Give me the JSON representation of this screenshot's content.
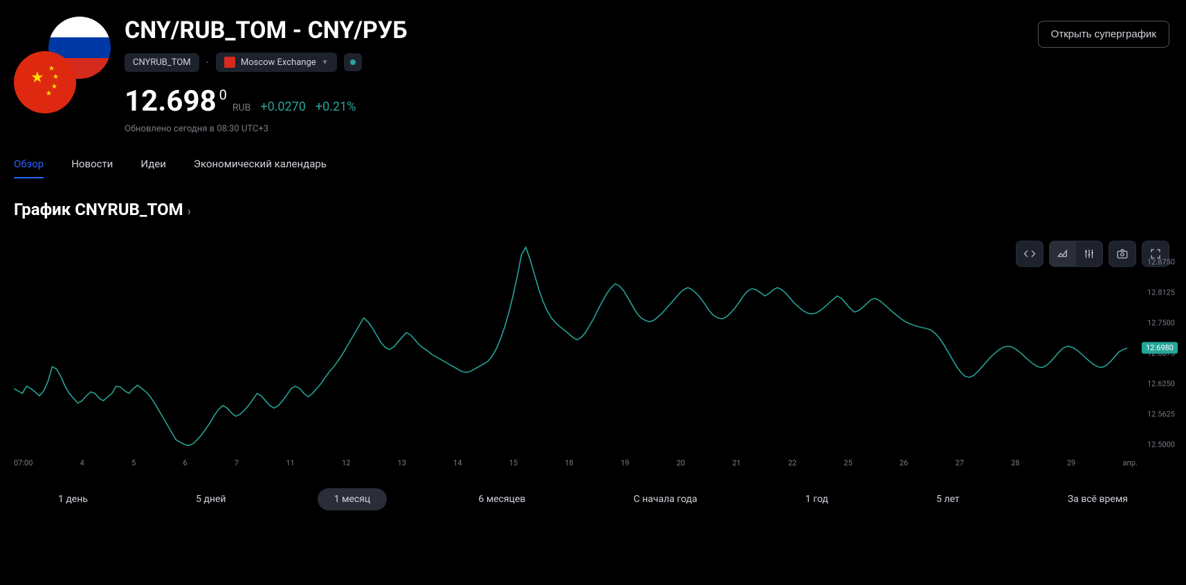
{
  "header": {
    "title": "CNY/RUB_TOM - CNY/РУБ",
    "ticker": "CNYRUB_TOM",
    "exchange": "Moscow Exchange",
    "status_color": "#26a69a",
    "open_superchart": "Открыть суперграфик"
  },
  "price": {
    "main": "12.698",
    "sup": "0",
    "unit": "RUB",
    "change_abs": "+0.0270",
    "change_pct": "+0.21%",
    "change_color": "#26a69a",
    "updated": "Обновлено сегодня в 08:30 UTC+3"
  },
  "tabs": [
    {
      "label": "Обзор",
      "active": true
    },
    {
      "label": "Новости",
      "active": false
    },
    {
      "label": "Идеи",
      "active": false
    },
    {
      "label": "Экономический календарь",
      "active": false
    }
  ],
  "chart_header": {
    "title": "График CNYRUB_TOM"
  },
  "chart": {
    "type": "line",
    "line_color": "#26a69a",
    "line_width": 1.5,
    "background_color": "#000000",
    "ylim": [
      12.48,
      12.92
    ],
    "y_ticks": [
      12.5,
      12.5625,
      12.625,
      12.6875,
      12.75,
      12.8125,
      12.875
    ],
    "y_tick_labels": [
      "12.5000",
      "12.5625",
      "12.6250",
      "12.6875",
      "12.7500",
      "12.8125",
      "12.8750"
    ],
    "current_value": 12.698,
    "current_label": "12.6980",
    "x_labels": [
      "07:00",
      "4",
      "5",
      "6",
      "7",
      "11",
      "12",
      "13",
      "14",
      "15",
      "18",
      "19",
      "20",
      "21",
      "22",
      "25",
      "26",
      "27",
      "28",
      "29",
      "апр."
    ],
    "series": [
      12.615,
      12.61,
      12.605,
      12.62,
      12.615,
      12.608,
      12.6,
      12.61,
      12.63,
      12.66,
      12.655,
      12.64,
      12.62,
      12.605,
      12.595,
      12.585,
      12.59,
      12.6,
      12.608,
      12.605,
      12.595,
      12.59,
      12.598,
      12.605,
      12.62,
      12.618,
      12.61,
      12.605,
      12.615,
      12.622,
      12.615,
      12.608,
      12.598,
      12.585,
      12.57,
      12.555,
      12.54,
      12.525,
      12.51,
      12.505,
      12.5,
      12.498,
      12.502,
      12.51,
      12.52,
      12.532,
      12.545,
      12.56,
      12.572,
      12.58,
      12.575,
      12.565,
      12.558,
      12.562,
      12.57,
      12.58,
      12.592,
      12.605,
      12.6,
      12.59,
      12.58,
      12.575,
      12.58,
      12.59,
      12.602,
      12.615,
      12.62,
      12.615,
      12.605,
      12.598,
      12.605,
      12.615,
      12.625,
      12.638,
      12.65,
      12.66,
      12.672,
      12.685,
      12.7,
      12.715,
      12.73,
      12.745,
      12.76,
      12.752,
      12.74,
      12.725,
      12.71,
      12.7,
      12.695,
      12.7,
      12.71,
      12.72,
      12.73,
      12.725,
      12.715,
      12.705,
      12.698,
      12.692,
      12.685,
      12.68,
      12.675,
      12.67,
      12.665,
      12.66,
      12.655,
      12.65,
      12.648,
      12.65,
      12.655,
      12.66,
      12.665,
      12.67,
      12.68,
      12.695,
      12.715,
      12.74,
      12.77,
      12.805,
      12.845,
      12.89,
      12.905,
      12.88,
      12.85,
      12.82,
      12.795,
      12.775,
      12.76,
      12.75,
      12.742,
      12.735,
      12.728,
      12.72,
      12.715,
      12.72,
      12.73,
      12.745,
      12.76,
      12.778,
      12.795,
      12.81,
      12.822,
      12.83,
      12.825,
      12.815,
      12.8,
      12.785,
      12.77,
      12.76,
      12.755,
      12.752,
      12.755,
      12.762,
      12.77,
      12.78,
      12.79,
      12.8,
      12.81,
      12.818,
      12.822,
      12.818,
      12.81,
      12.8,
      12.788,
      12.775,
      12.765,
      12.76,
      12.758,
      12.762,
      12.77,
      12.78,
      12.792,
      12.805,
      12.815,
      12.82,
      12.818,
      12.812,
      12.805,
      12.81,
      12.818,
      12.822,
      12.818,
      12.81,
      12.8,
      12.79,
      12.782,
      12.775,
      12.77,
      12.768,
      12.77,
      12.775,
      12.782,
      12.79,
      12.798,
      12.805,
      12.8,
      12.79,
      12.78,
      12.772,
      12.775,
      12.782,
      12.79,
      12.798,
      12.8,
      12.795,
      12.788,
      12.78,
      12.772,
      12.765,
      12.758,
      12.752,
      12.748,
      12.745,
      12.742,
      12.74,
      12.738,
      12.735,
      12.728,
      12.718,
      12.705,
      12.69,
      12.675,
      12.66,
      12.648,
      12.64,
      12.638,
      12.642,
      12.65,
      12.66,
      12.67,
      12.68,
      12.688,
      12.695,
      12.7,
      12.702,
      12.7,
      12.695,
      12.688,
      12.68,
      12.672,
      12.665,
      12.66,
      12.658,
      12.662,
      12.67,
      12.68,
      12.69,
      12.698,
      12.702,
      12.7,
      12.695,
      12.688,
      12.68,
      12.672,
      12.665,
      12.66,
      12.658,
      12.662,
      12.67,
      12.68,
      12.69,
      12.695,
      12.698
    ]
  },
  "ranges": [
    {
      "label": "1 день",
      "active": false
    },
    {
      "label": "5 дней",
      "active": false
    },
    {
      "label": "1 месяц",
      "active": true
    },
    {
      "label": "6 месяцев",
      "active": false
    },
    {
      "label": "С начала года",
      "active": false
    },
    {
      "label": "1 год",
      "active": false
    },
    {
      "label": "5 лет",
      "active": false
    },
    {
      "label": "За всё время",
      "active": false
    }
  ],
  "toolbar": {
    "code": "code-icon",
    "chart_type": "area-icon",
    "indicators": "settings-icon",
    "camera": "camera-icon",
    "fullscreen": "fullscreen-icon"
  }
}
